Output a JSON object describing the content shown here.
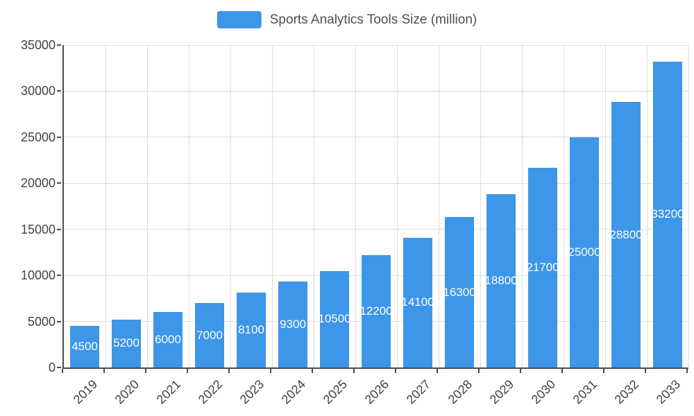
{
  "chart_data": {
    "type": "bar",
    "title": "Sports Analytics Tools Size (million)",
    "legend_label": "Sports Analytics Tools Size (million)",
    "categories": [
      "2019",
      "2020",
      "2021",
      "2022",
      "2023",
      "2024",
      "2025",
      "2026",
      "2027",
      "2028",
      "2029",
      "2030",
      "2031",
      "2032",
      "2033"
    ],
    "values": [
      4500,
      5200,
      6000,
      7000,
      8100,
      9300,
      10500,
      12200,
      14100,
      16300,
      18800,
      21700,
      25000,
      28800,
      33200
    ],
    "xlabel": "",
    "ylabel": "",
    "ylim": [
      0,
      35000
    ],
    "ytick_interval": 5000,
    "yticks": [
      0,
      5000,
      10000,
      15000,
      20000,
      25000,
      30000,
      35000
    ],
    "grid": true,
    "legend_position": "top",
    "bar_color": "#3D96E8",
    "value_label_color": "#FFFFFF"
  }
}
